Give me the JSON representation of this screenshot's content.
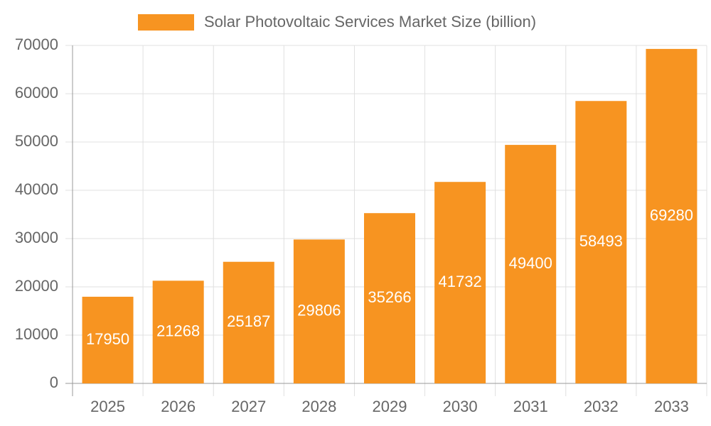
{
  "chart_data": {
    "type": "bar",
    "categories": [
      "2025",
      "2026",
      "2027",
      "2028",
      "2029",
      "2030",
      "2031",
      "2032",
      "2033"
    ],
    "series": [
      {
        "name": "Solar Photovoltaic Services Market Size (billion)",
        "color": "#f79421",
        "values": [
          17950,
          21268,
          25187,
          29806,
          35266,
          41732,
          49400,
          58493,
          69280
        ]
      }
    ],
    "ylim": [
      0,
      70000
    ],
    "yticks": [
      0,
      10000,
      20000,
      30000,
      40000,
      50000,
      60000,
      70000
    ],
    "grid": true,
    "legend": "top"
  }
}
